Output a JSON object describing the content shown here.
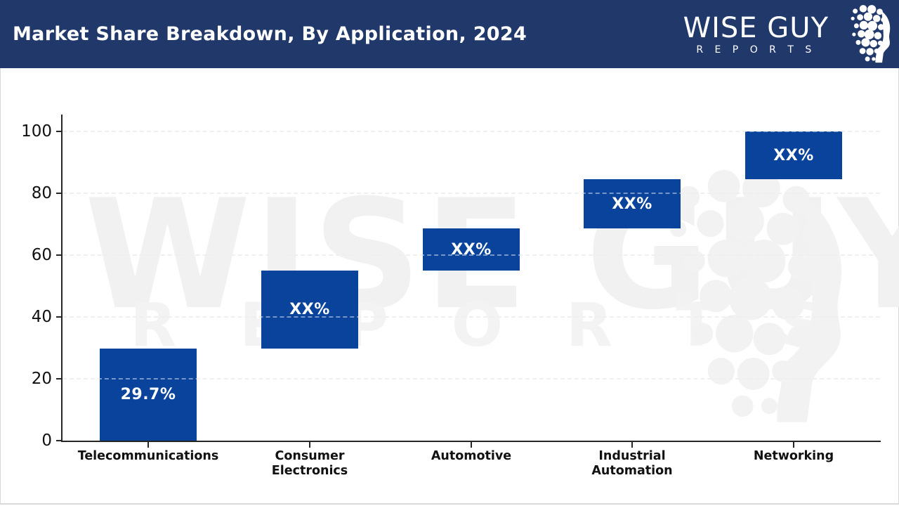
{
  "header": {
    "title": "Market Share Breakdown, By Application, 2024",
    "logo": {
      "line1": "WISE GUY",
      "line2": "R E P O R T S"
    }
  },
  "watermark": {
    "line1": "WISE GUY",
    "line2": "R E P O R T S"
  },
  "chart_data": {
    "type": "bar",
    "subtype": "waterfall",
    "title": "Market Share Breakdown, By Application, 2024",
    "categories": [
      "Telecommunications",
      "Consumer\nElectronics",
      "Automotive",
      "Industrial\nAutomation",
      "Networking"
    ],
    "segments": [
      {
        "start": 0,
        "end": 29.7
      },
      {
        "start": 29.7,
        "end": 55.0
      },
      {
        "start": 55.0,
        "end": 68.6
      },
      {
        "start": 68.6,
        "end": 84.5
      },
      {
        "start": 84.5,
        "end": 100.0
      }
    ],
    "bar_labels": [
      "29.7%",
      "XX%",
      "XX%",
      "XX%",
      "XX%"
    ],
    "yticks": [
      0,
      20,
      40,
      60,
      80,
      100
    ],
    "ylim": [
      0,
      100
    ],
    "xlabel": "",
    "ylabel": "",
    "grid": "dashed-horizontal",
    "legend": "none",
    "bar_color": "#09439b",
    "bar_label_color": "#ffffff"
  },
  "colors": {
    "header_bg": "#21386b",
    "bar": "#09439b",
    "axis": "#262626",
    "grid": "#e2e2e2",
    "watermark": "#f1f1f1",
    "bottom_rule": "#d9d9d9"
  }
}
